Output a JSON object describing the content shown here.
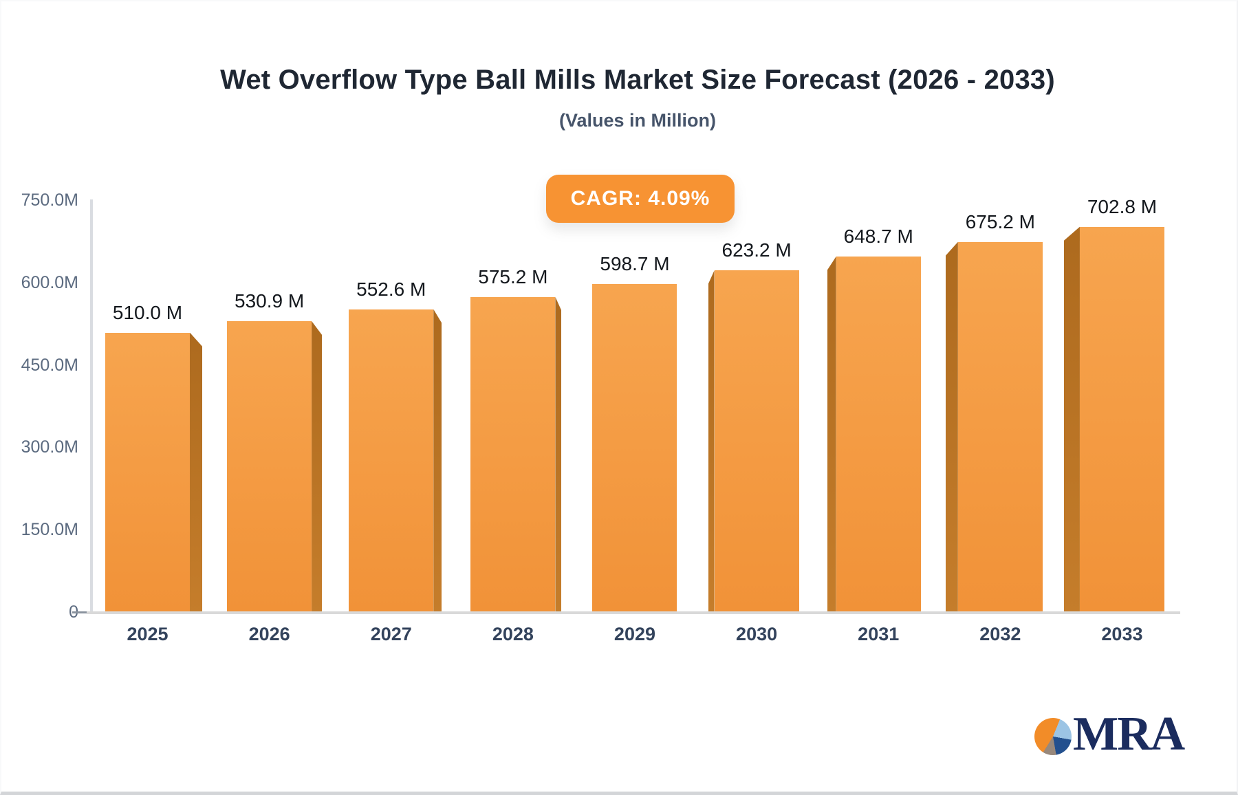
{
  "title": "Wet Overflow Type Ball Mills Market Size Forecast (2026 - 2033)",
  "subtitle": "(Values in Million)",
  "cagr_label": "CAGR: 4.09%",
  "logo": {
    "text": "MRA"
  },
  "colors": {
    "badge_orange": "#f79333",
    "bar_face_top": "#f7a54f",
    "bar_face_bottom": "#f19238",
    "bar_side_top": "#ad6a1e",
    "bar_side_bottom": "#c57d2b"
  },
  "chart_data": {
    "type": "bar",
    "title": "Wet Overflow Type Ball Mills Market Size Forecast (2026 - 2033)",
    "subtitle": "(Values in Million)",
    "annotation": "CAGR: 4.09%",
    "categories": [
      "2025",
      "2026",
      "2027",
      "2028",
      "2029",
      "2030",
      "2031",
      "2032",
      "2033"
    ],
    "values": [
      510.0,
      530.9,
      552.6,
      575.2,
      598.7,
      623.2,
      648.7,
      675.2,
      702.8
    ],
    "value_labels": [
      "510.0 M",
      "530.9 M",
      "552.6 M",
      "575.2 M",
      "598.7 M",
      "623.2 M",
      "648.7 M",
      "675.2 M",
      "702.8 M"
    ],
    "unit": "Million",
    "xlabel": "",
    "ylabel": "",
    "ylim": [
      0,
      750
    ],
    "y_tick_values": [
      750,
      600,
      450,
      300,
      150,
      0
    ],
    "y_tick_labels": [
      "750.0M",
      "600.0M",
      "450.0M",
      "300.0M",
      "150.0M",
      "0"
    ],
    "grid": "off",
    "legend": "none"
  }
}
